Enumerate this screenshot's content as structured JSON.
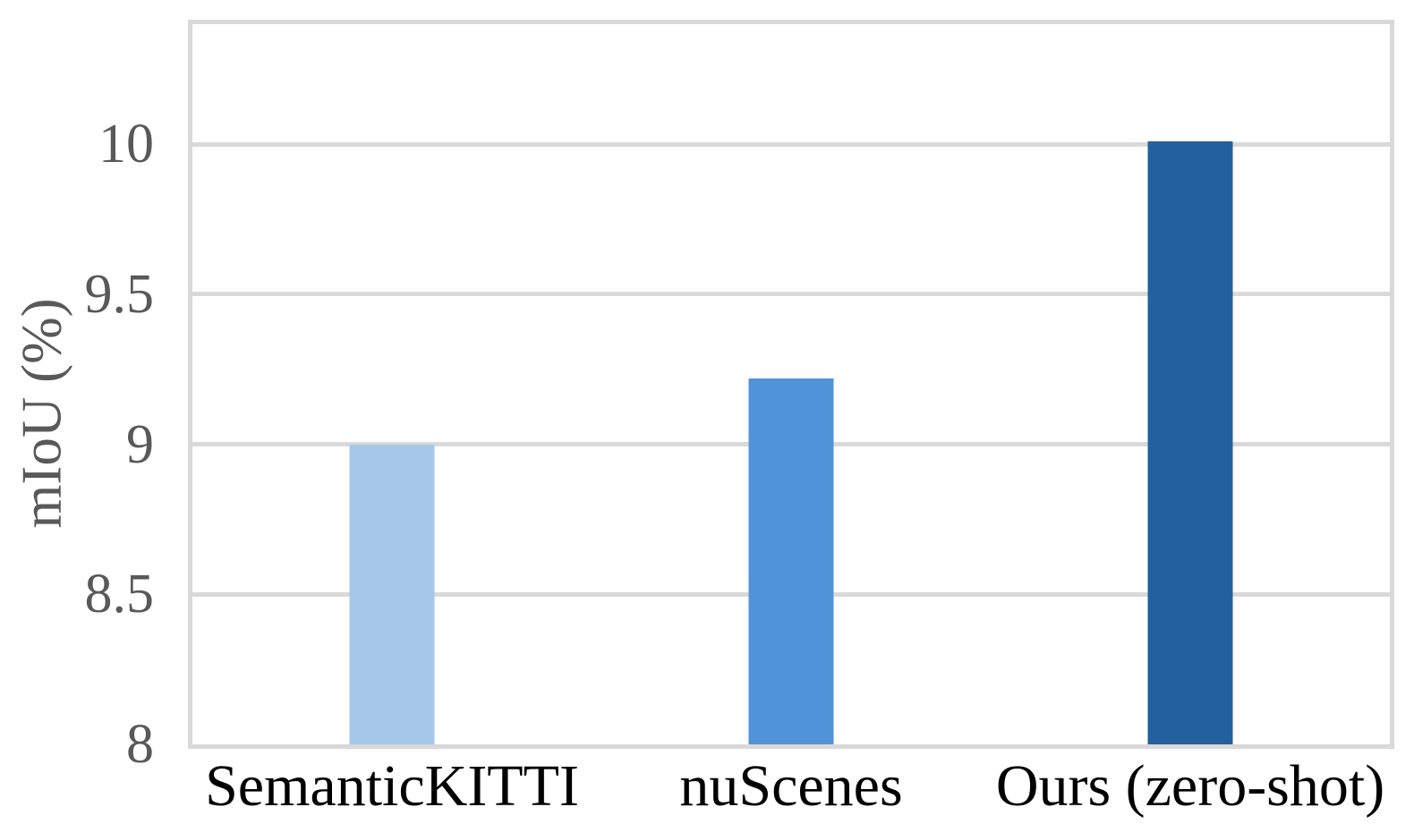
{
  "figure": {
    "background": "#ffffff",
    "frame_color": "#d9d9d9",
    "tick_label_color": "#595959",
    "category_label_color": "#000000"
  },
  "chart_data": {
    "type": "bar",
    "title": "",
    "categories": [
      "SemanticKITTI",
      "nuScenes",
      "Ours (zero-shot)"
    ],
    "values": [
      9.0,
      9.22,
      10.01
    ],
    "bar_colors": [
      "#a5c8ea",
      "#5093d9",
      "#23609f"
    ],
    "xlabel": "",
    "ylabel": "mIoU (%)",
    "yticks": [
      8,
      8.5,
      9,
      9.5,
      10
    ],
    "ytick_labels": [
      "8",
      "8.5",
      "9",
      "9.5",
      "10"
    ],
    "ylim": [
      8,
      10.4
    ],
    "grid": true,
    "gridline_color": "#d9d9d9",
    "legend_position": "none"
  }
}
